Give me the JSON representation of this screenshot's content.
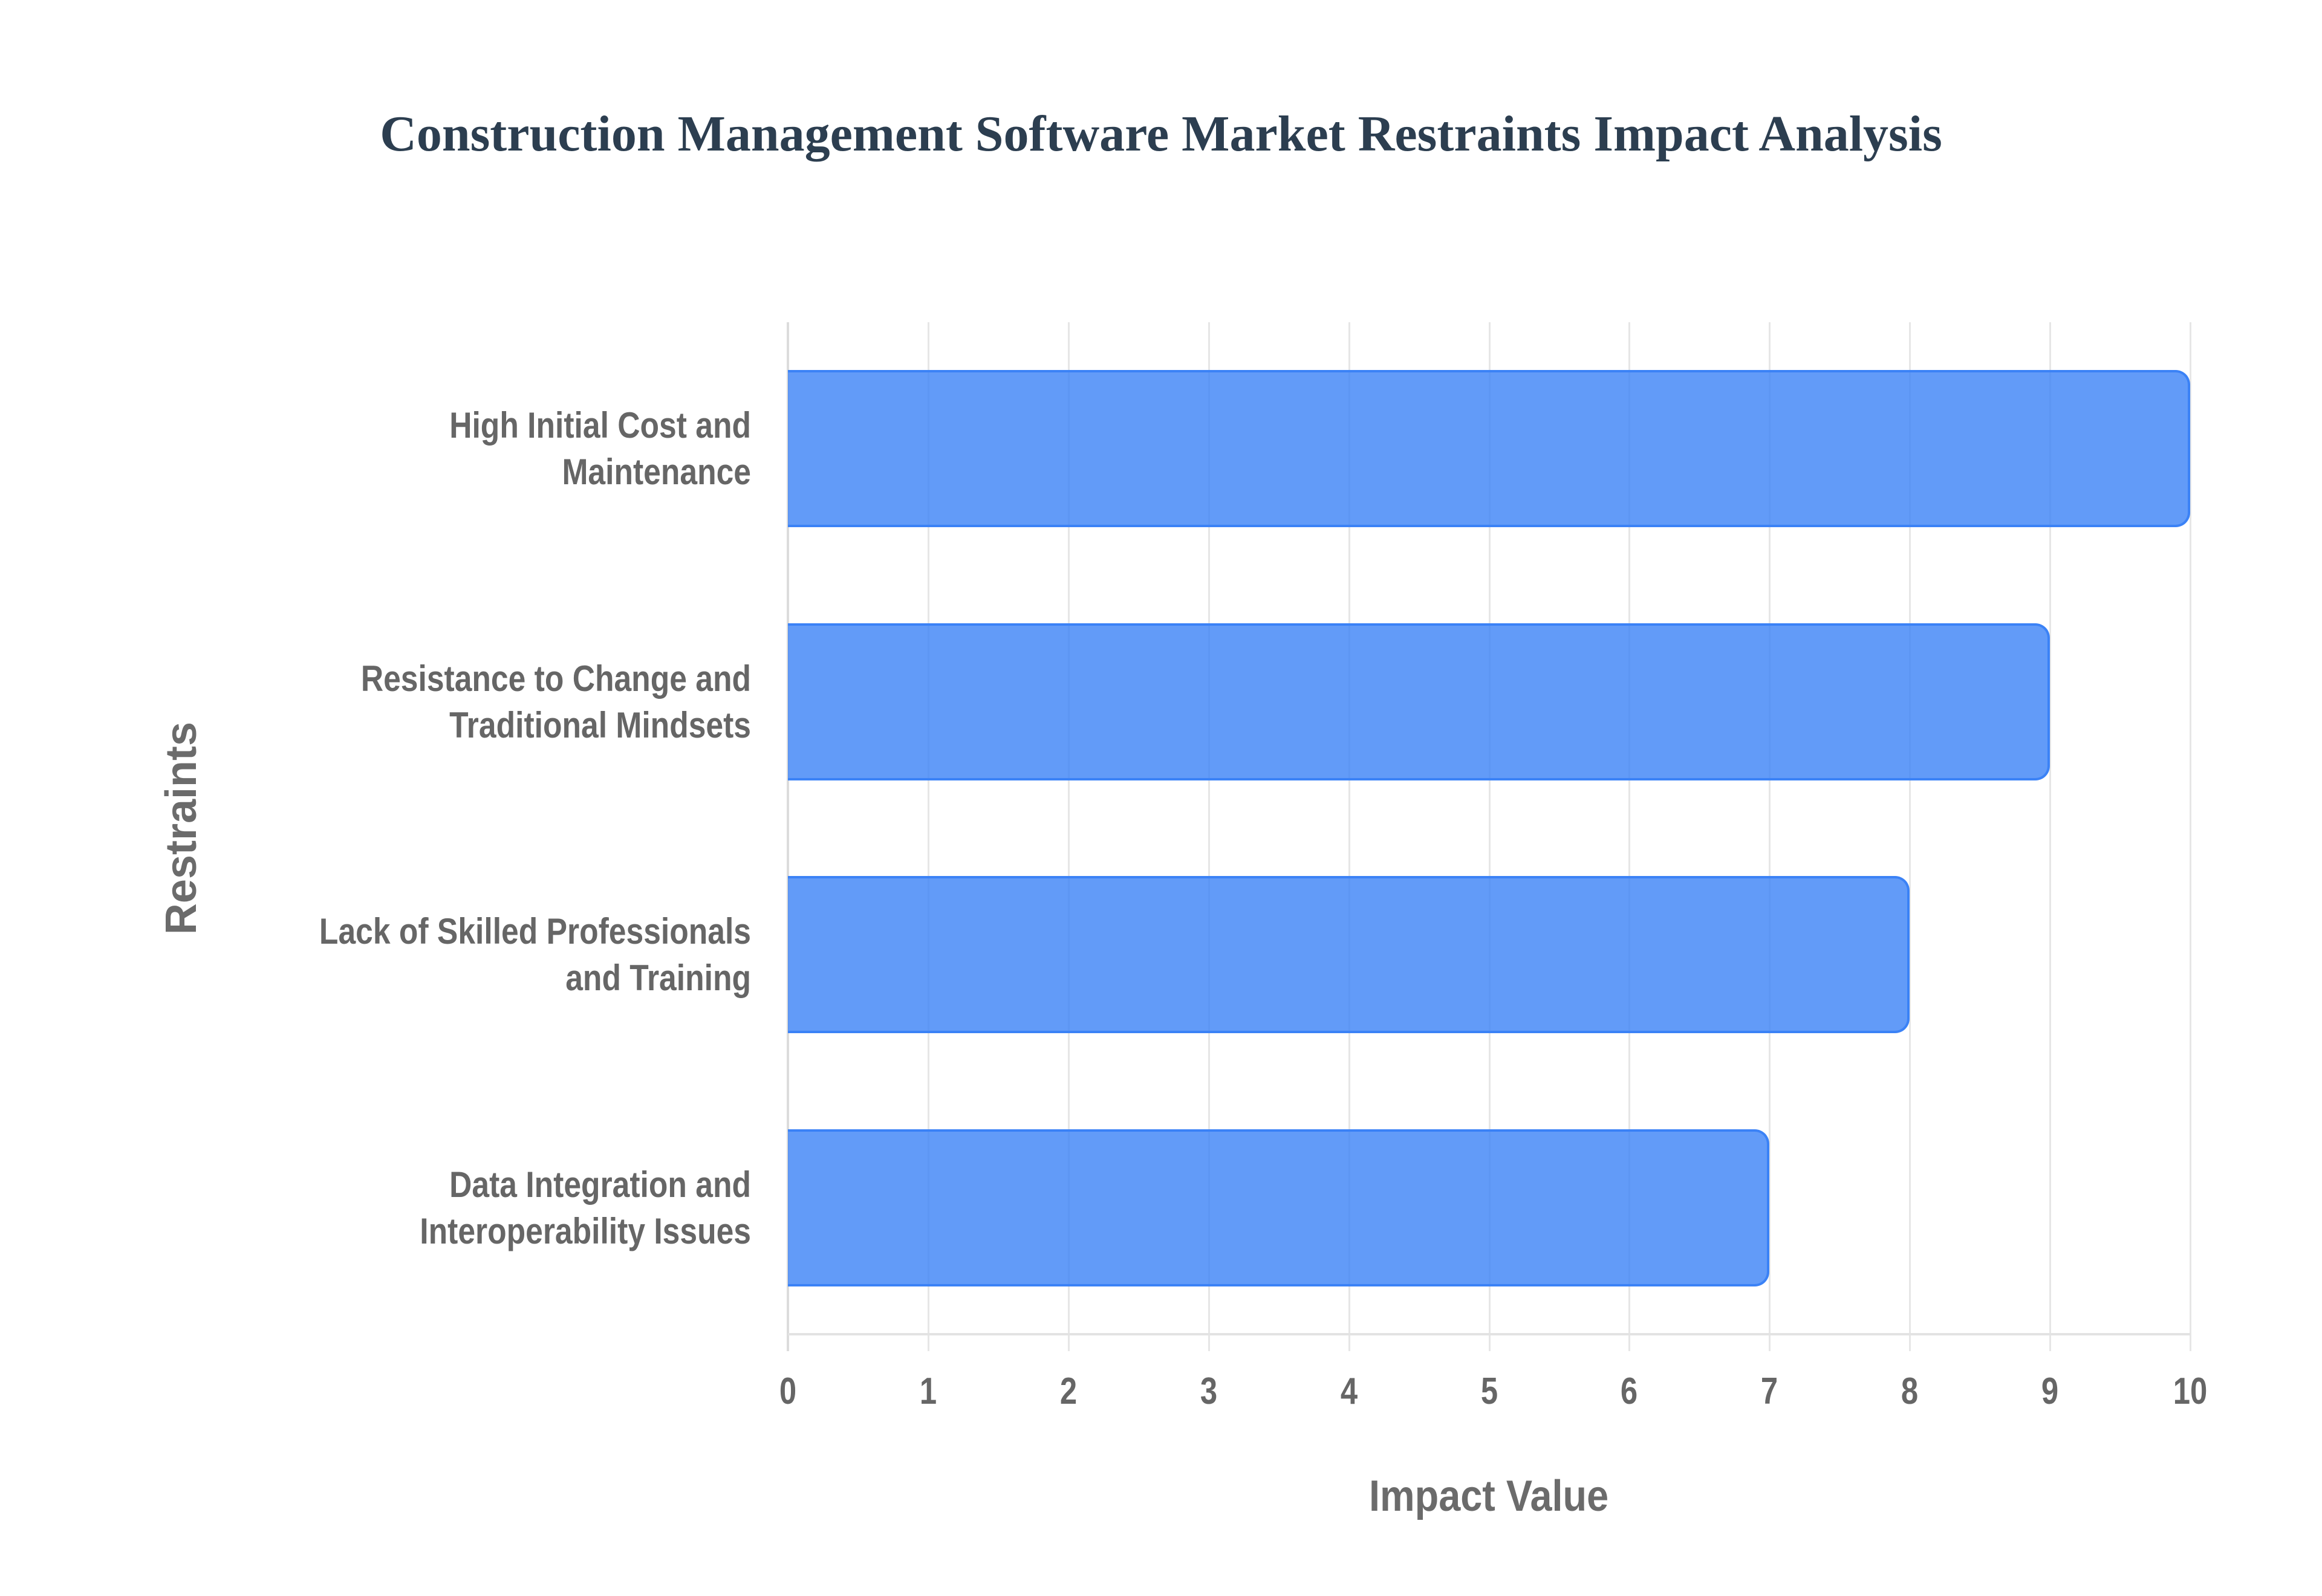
{
  "chart_data": {
    "type": "bar",
    "orientation": "horizontal",
    "title": "Construction Management Software Market Restraints Impact Analysis",
    "xlabel": "Impact Value",
    "ylabel": "Restraints",
    "categories": [
      "High Initial Cost and Maintenance",
      "Resistance to Change and Traditional Mindsets",
      "Lack of Skilled Professionals and Training",
      "Data Integration and Interoperability Issues"
    ],
    "values": [
      10,
      9,
      8,
      7
    ],
    "xlim": [
      0,
      10
    ],
    "x_ticks": [
      "0",
      "1",
      "2",
      "3",
      "4",
      "5",
      "6",
      "7",
      "8",
      "9",
      "10"
    ],
    "grid": true,
    "legend": null,
    "colors": {
      "bar_fill": "#6399f6",
      "bar_border": "#3b82f6",
      "title": "#2c3e50",
      "labels": "#666666",
      "grid": "#e6e6e6"
    }
  },
  "labels": {
    "title": "Construction Management Software Market Restraints Impact Analysis",
    "x_title": "Impact Value",
    "y_title": "Restraints",
    "categories": [
      {
        "line1": "High Initial Cost and",
        "line2": "Maintenance"
      },
      {
        "line1": "Resistance to Change and",
        "line2": "Traditional Mindsets"
      },
      {
        "line1": "Lack of Skilled Professionals",
        "line2": "and Training"
      },
      {
        "line1": "Data Integration and",
        "line2": "Interoperability Issues"
      }
    ],
    "ticks": [
      "0",
      "1",
      "2",
      "3",
      "4",
      "5",
      "6",
      "7",
      "8",
      "9",
      "10"
    ]
  }
}
